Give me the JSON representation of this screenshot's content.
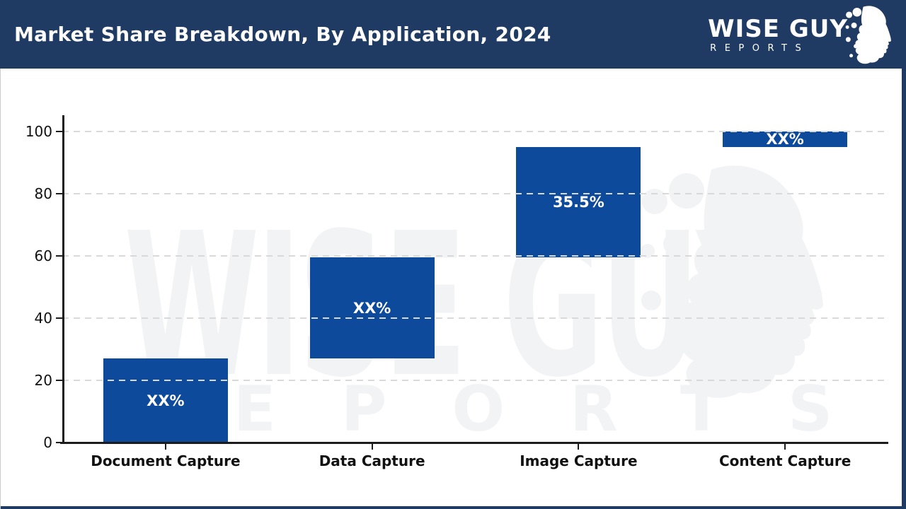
{
  "header": {
    "title": "Market Share Breakdown, By Application, 2024",
    "logo": {
      "line1": "WISE GUY",
      "line2": "REPORTS"
    }
  },
  "watermark": {
    "line1": "WISE GUY",
    "line2": "REPORTS"
  },
  "colors": {
    "header_bg": "#1f3a63",
    "bar": "#0d4a9c",
    "grid": "#d9d9d9",
    "axis": "#1c1c1c",
    "bar_label": "#ffffff",
    "watermark": "#f2f3f5"
  },
  "chart_data": {
    "type": "bar",
    "subtype": "waterfall",
    "title": "Market Share Breakdown, By Application, 2024",
    "xlabel": "",
    "ylabel": "",
    "categories": [
      "Document Capture",
      "Data Capture",
      "Image Capture",
      "Content Capture"
    ],
    "segments": [
      {
        "category": "Document Capture",
        "start": 0,
        "end": 27,
        "label": "XX%"
      },
      {
        "category": "Data Capture",
        "start": 27,
        "end": 59.5,
        "label": "XX%"
      },
      {
        "category": "Image Capture",
        "start": 59.5,
        "end": 95,
        "label": "35.5%"
      },
      {
        "category": "Content Capture",
        "start": 95,
        "end": 100,
        "label": "XX%"
      }
    ],
    "yticks": [
      0,
      20,
      40,
      60,
      80,
      100
    ],
    "ylim": [
      0,
      105
    ],
    "grid": "horizontal-dashed",
    "legend": "none"
  }
}
